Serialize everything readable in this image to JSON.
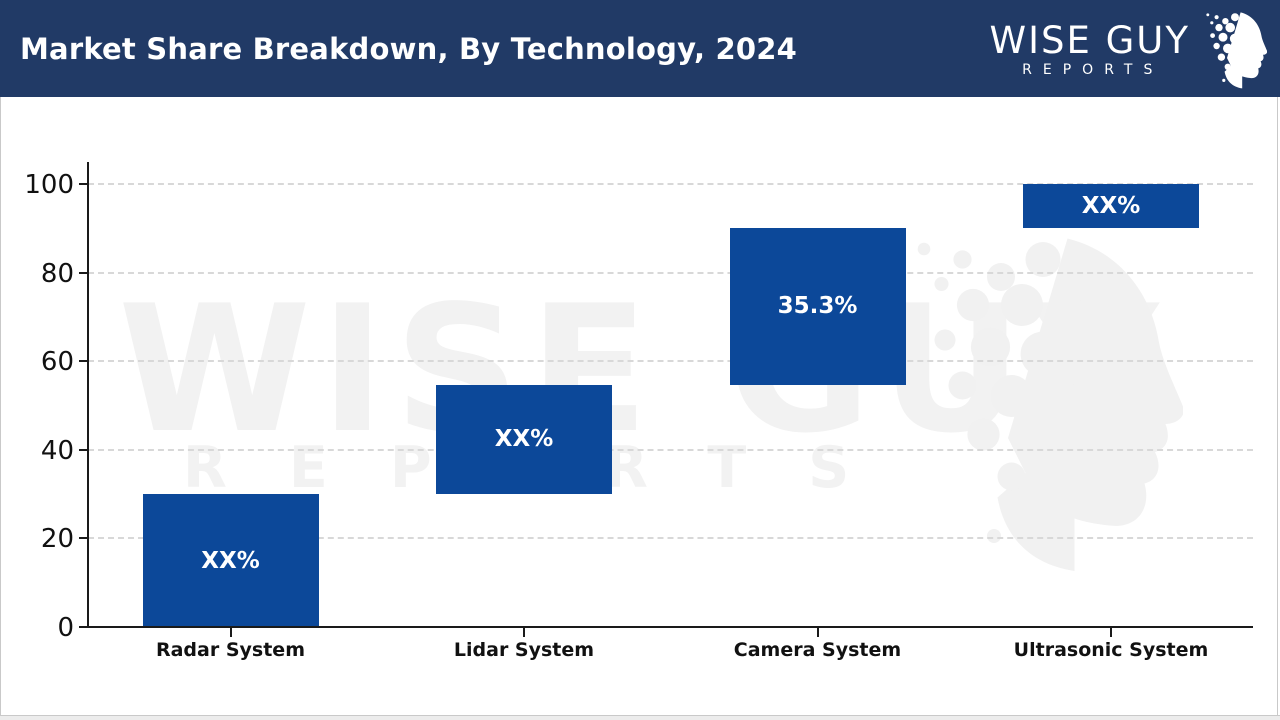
{
  "header": {
    "title": "Market Share Breakdown, By Technology, 2024",
    "bg_color": "#213a66",
    "logo": {
      "line1": "WISE GUY",
      "line2": "REPORTS"
    }
  },
  "watermark": {
    "line1": "WISE GUY",
    "line2": "REPORTS"
  },
  "chart_data": {
    "type": "bar",
    "subtype": "waterfall-floating-bars",
    "title": "Market Share Breakdown, By Technology, 2024",
    "categories": [
      "Radar System",
      "Lidar System",
      "Camera System",
      "Ultrasonic System"
    ],
    "segments": [
      {
        "category": "Radar System",
        "start": 0,
        "end": 30,
        "value": 30,
        "label": "XX%"
      },
      {
        "category": "Lidar System",
        "start": 30,
        "end": 54.7,
        "value": 24.7,
        "label": "XX%"
      },
      {
        "category": "Camera System",
        "start": 54.7,
        "end": 90,
        "value": 35.3,
        "label": "35.3%"
      },
      {
        "category": "Ultrasonic System",
        "start": 90,
        "end": 100,
        "value": 10,
        "label": "XX%"
      }
    ],
    "y_ticks": [
      0,
      20,
      40,
      60,
      80,
      100
    ],
    "ylim": [
      0,
      105
    ],
    "xlabel": "",
    "ylabel": "",
    "legend": "none",
    "grid": "horizontal-dashed",
    "bar_color": "#0c4899",
    "grid_color": "#d8d8d8",
    "axis_color": "#1a1a1a"
  }
}
